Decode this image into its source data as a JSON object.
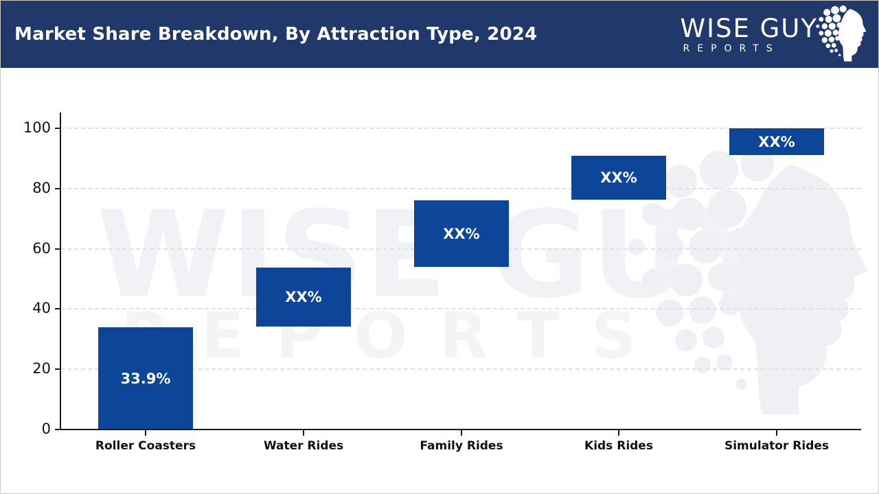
{
  "header": {
    "title": "Market Share Breakdown, By Attraction Type, 2024",
    "logo": {
      "line1": "WISE GUY",
      "line2": "REPORTS"
    }
  },
  "watermark": {
    "line1": "WISE GUY",
    "line2": "REPORTS"
  },
  "colors": {
    "header_bg": "#21386B",
    "bar": "#0D4699",
    "bar_label": "#FFFFFF",
    "grid": "#E0E0E0",
    "axis": "#1A1A1A",
    "watermark": "#F1F2F5"
  },
  "chart_data": {
    "type": "bar",
    "subtype": "waterfall",
    "title": "Market Share Breakdown, By Attraction Type, 2024",
    "categories": [
      "Roller Coasters",
      "Water Rides",
      "Family Rides",
      "Kids Rides",
      "Simulator Rides"
    ],
    "segments": [
      {
        "category": "Roller Coasters",
        "start": 0,
        "end": 33.9,
        "label": "33.9%"
      },
      {
        "category": "Water Rides",
        "start": 34.1,
        "end": 53.7,
        "label": "XX%"
      },
      {
        "category": "Family Rides",
        "start": 53.9,
        "end": 76.1,
        "label": "XX%"
      },
      {
        "category": "Kids Rides",
        "start": 76.3,
        "end": 91.0,
        "label": "XX%"
      },
      {
        "category": "Simulator Rides",
        "start": 91.2,
        "end": 99.9,
        "label": "XX%"
      }
    ],
    "yticks": [
      0,
      20,
      40,
      60,
      80,
      100
    ],
    "ylim": [
      0,
      105
    ],
    "xlabel": "",
    "ylabel": "",
    "grid": "horizontal-dashed",
    "legend": null
  }
}
